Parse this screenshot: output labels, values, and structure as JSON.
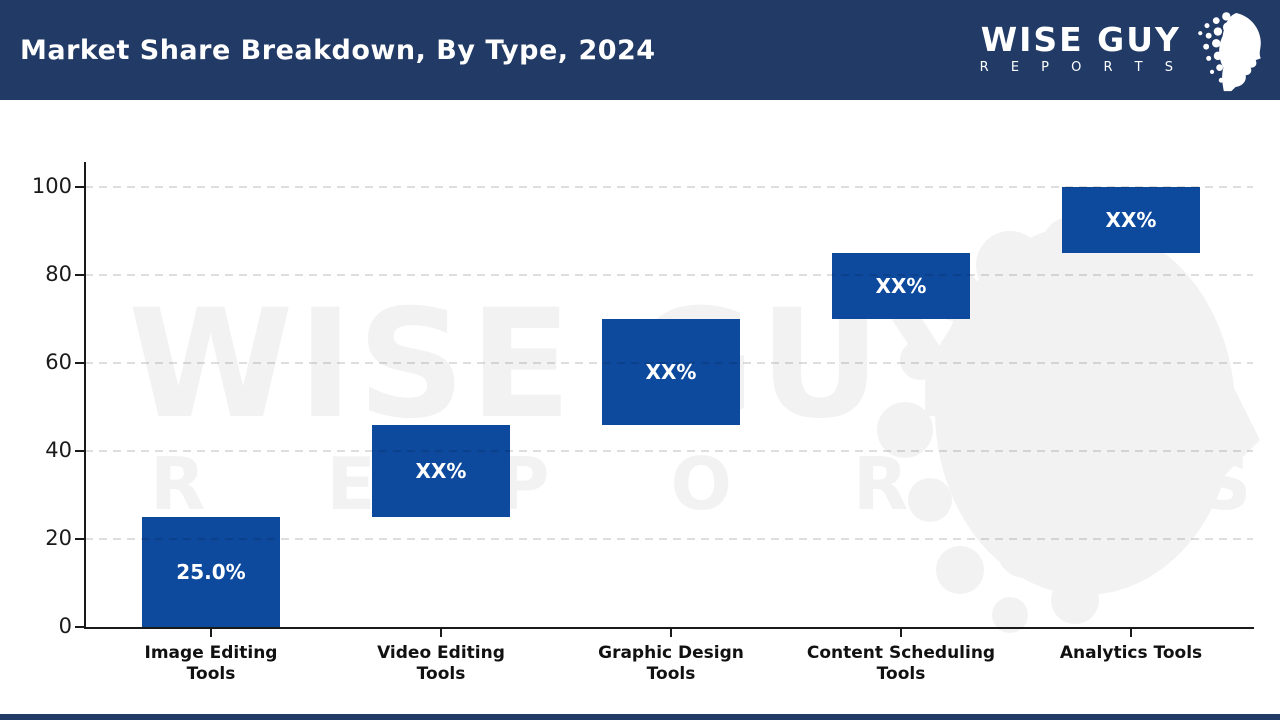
{
  "colors": {
    "navy": "#213a66",
    "bar": "#0d4a9e",
    "watermark": "#f2f2f2",
    "grid_rgba": "rgba(0,0,0,0.13)",
    "axis_text": "#1a1a1a"
  },
  "header": {
    "title": "Market Share Breakdown, By Type, 2024",
    "logo_line1": "WISE GUY",
    "logo_line2": "R E P O R T S"
  },
  "watermark": {
    "line1": "WISE GUY",
    "line2": "R E P O R T S"
  },
  "chart_data": {
    "type": "bar",
    "subtype": "waterfall-floating-segments",
    "title": "Market Share Breakdown, By Type, 2024",
    "categories": [
      "Image Editing Tools",
      "Video Editing Tools",
      "Graphic Design Tools",
      "Content Scheduling Tools",
      "Analytics Tools"
    ],
    "category_lines": [
      [
        "Image Editing",
        "Tools"
      ],
      [
        "Video Editing",
        "Tools"
      ],
      [
        "Graphic Design",
        "Tools"
      ],
      [
        "Content Scheduling",
        "Tools"
      ],
      [
        "Analytics Tools"
      ]
    ],
    "segments": [
      {
        "start": 0,
        "end": 25
      },
      {
        "start": 25,
        "end": 46
      },
      {
        "start": 46,
        "end": 70
      },
      {
        "start": 70,
        "end": 85
      },
      {
        "start": 85,
        "end": 100
      }
    ],
    "bar_labels": [
      "25.0%",
      "XX%",
      "XX%",
      "XX%",
      "XX%"
    ],
    "yticks": [
      0,
      20,
      40,
      60,
      80,
      100
    ],
    "ylim": [
      0,
      100
    ],
    "xlabel": "",
    "ylabel": "",
    "grid": "horizontal dashed, drawn over bars",
    "legend": "none"
  }
}
